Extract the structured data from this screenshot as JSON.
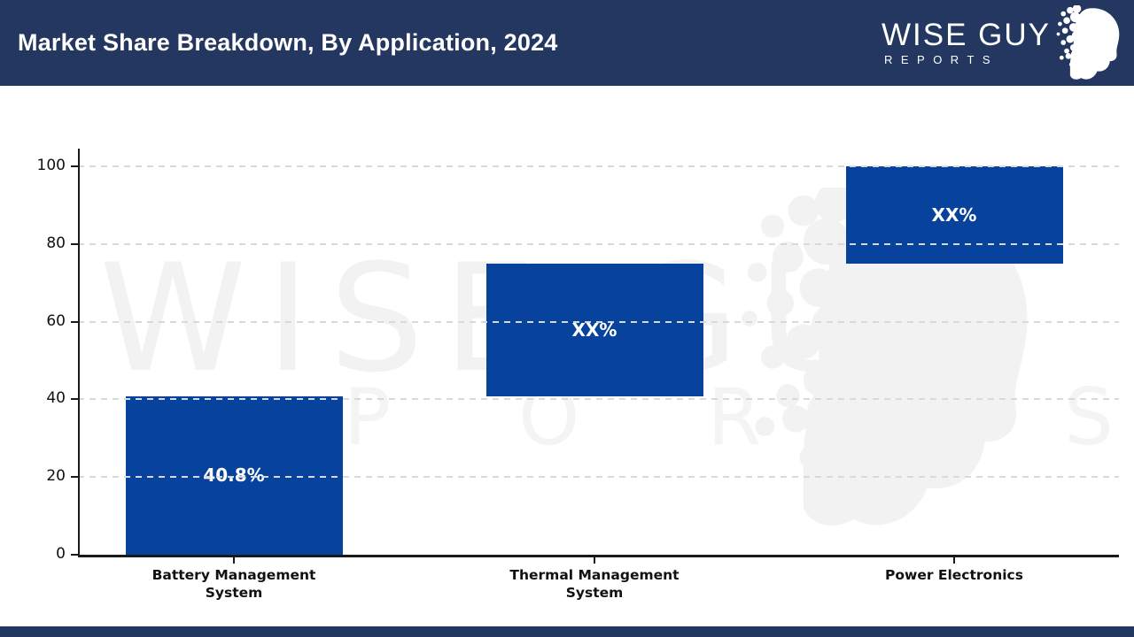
{
  "header": {
    "title": "Market Share Breakdown, By Application, 2024",
    "logo": {
      "primary": "WISE GUY",
      "secondary": "REPORTS"
    }
  },
  "watermark": {
    "line1": "WISE GUY",
    "line2": "P O R T S"
  },
  "colors": {
    "header_bg": "#233760",
    "footer_bg": "#233760",
    "bar": "#07429c",
    "grid": "#d9d9d9",
    "axis": "#1a1a1a",
    "bar_label_text": "#ffffff",
    "watermark": "#f2f2f2"
  },
  "chart_data": {
    "type": "bar",
    "subtype": "waterfall",
    "title": "Market Share Breakdown, By Application, 2024",
    "categories": [
      "Battery Management System",
      "Thermal Management System",
      "Power Electronics"
    ],
    "category_display_lines": [
      [
        "Battery Management",
        "System"
      ],
      [
        "Thermal Management",
        "System"
      ],
      [
        "Power Electronics"
      ]
    ],
    "segments": [
      {
        "category": "Battery Management System",
        "start": 0,
        "end": 40.8,
        "label": "40.8%"
      },
      {
        "category": "Thermal Management System",
        "start": 40.8,
        "end": 75,
        "label": "XX%"
      },
      {
        "category": "Power Electronics",
        "start": 75,
        "end": 100,
        "label": "XX%"
      }
    ],
    "yticks": [
      0,
      20,
      40,
      60,
      80,
      100
    ],
    "ylim": [
      0,
      105
    ],
    "xlabel": "",
    "ylabel": "",
    "grid": "horizontal-dashed-over-bars",
    "legend": "none"
  }
}
